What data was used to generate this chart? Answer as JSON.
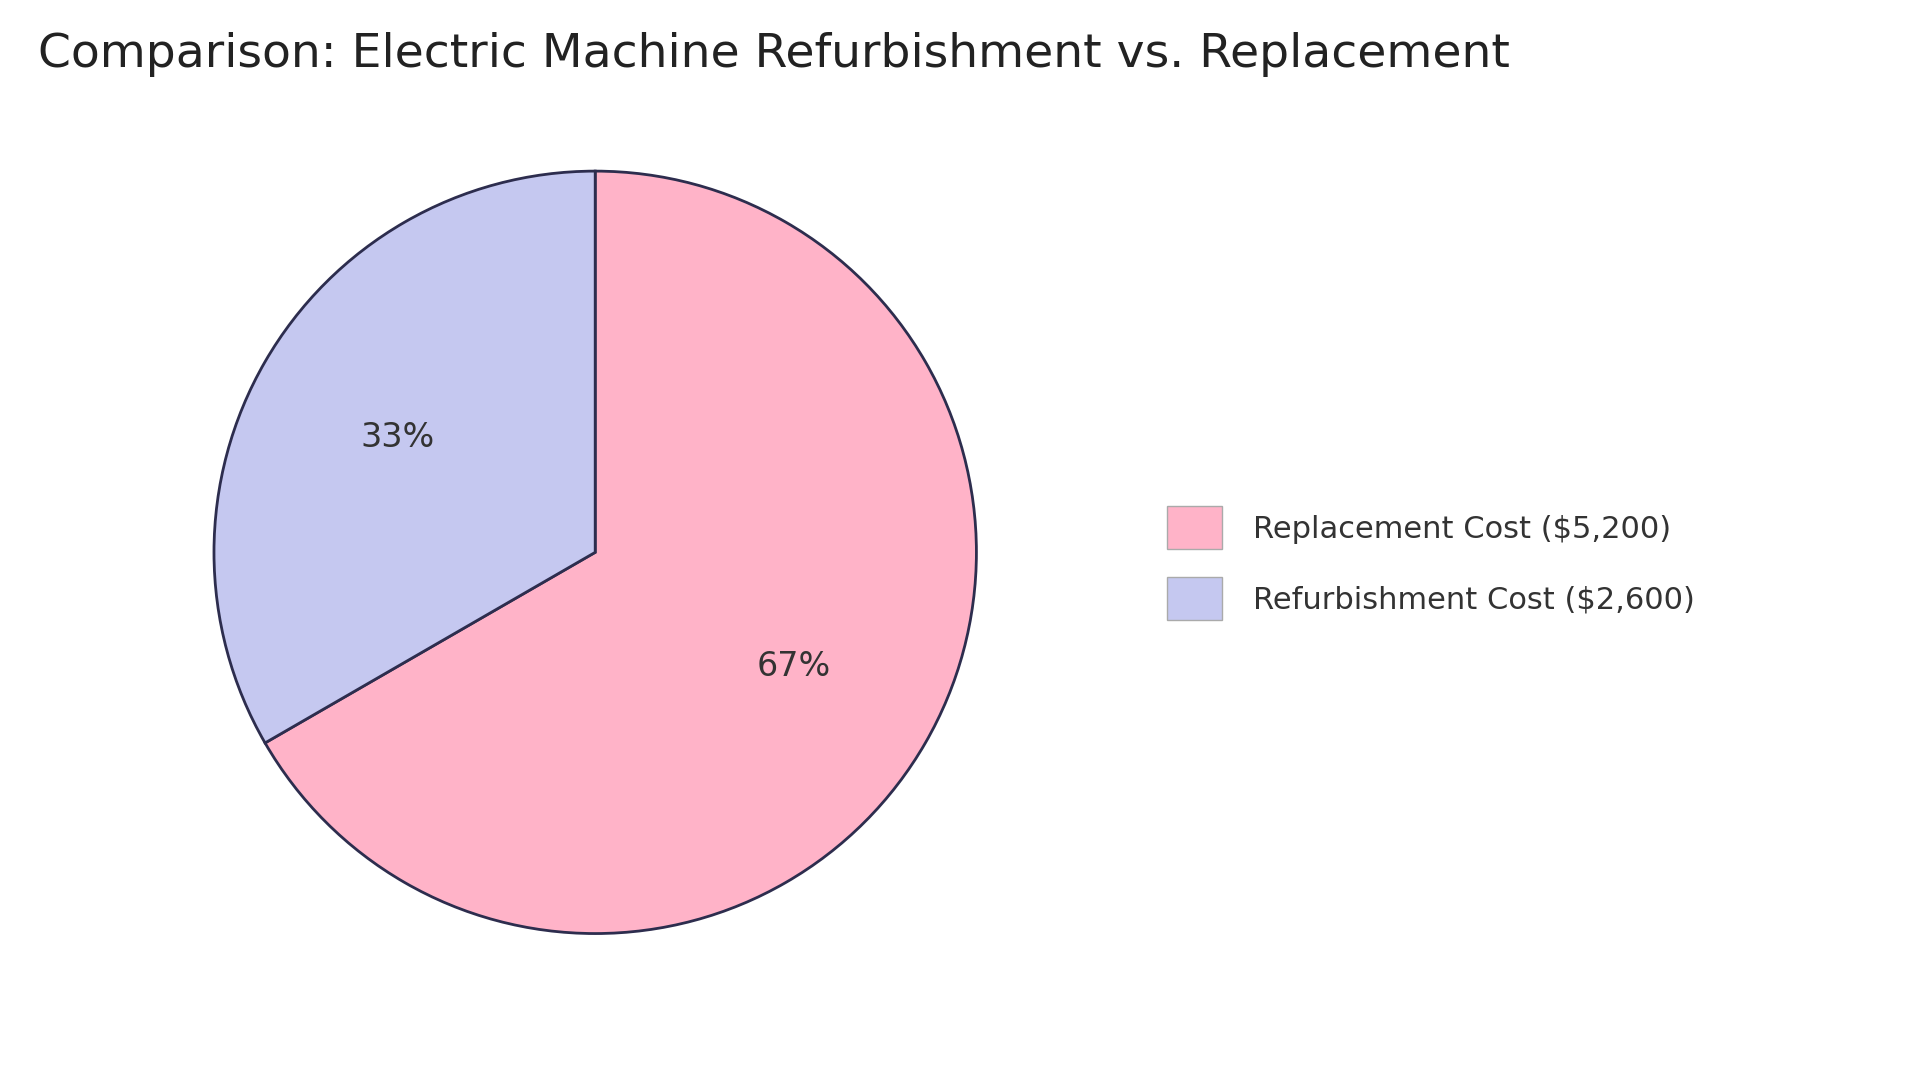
{
  "title": "Comparison: Electric Machine Refurbishment vs. Replacement",
  "slices": [
    {
      "label": "Replacement Cost ($5,200)",
      "value": 5200,
      "color": "#FFB3C8",
      "pct": "67%"
    },
    {
      "label": "Refurbishment Cost ($2,600)",
      "value": 2600,
      "color": "#C5C8F0",
      "pct": "33%"
    }
  ],
  "title_fontsize": 34,
  "pct_fontsize": 24,
  "legend_fontsize": 22,
  "edge_color": "#2d2d4e",
  "edge_linewidth": 2.0,
  "background_color": "#ffffff",
  "start_angle": 90,
  "counterclock": false
}
